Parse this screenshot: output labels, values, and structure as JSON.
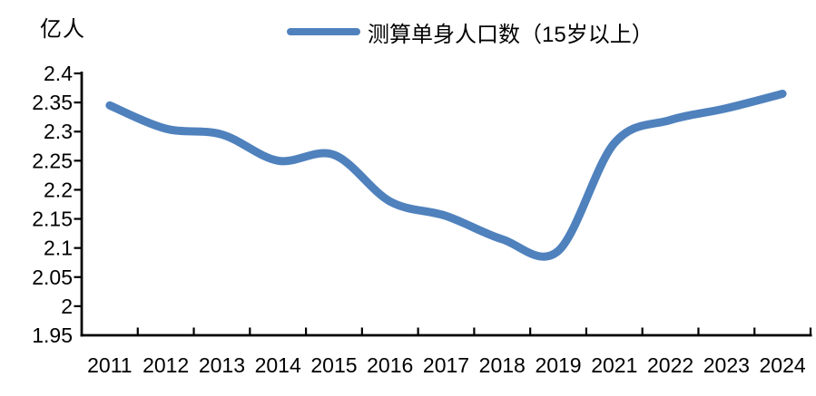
{
  "unit_label": "亿人",
  "legend": {
    "label": "测算单身人口数（15岁以上）",
    "line_color": "#4F81BD"
  },
  "chart_data": {
    "type": "line",
    "smooth": true,
    "title": "测算单身人口数（15岁以上）",
    "ylabel": "亿人",
    "xlabel": "",
    "categories": [
      "2011",
      "2012",
      "2013",
      "2014",
      "2015",
      "2016",
      "2017",
      "2018",
      "2019",
      "2021",
      "2022",
      "2023",
      "2024"
    ],
    "series": [
      {
        "name": "测算单身人口数（15岁以上）",
        "color": "#4F81BD",
        "values": [
          2.345,
          2.305,
          2.295,
          2.25,
          2.26,
          2.18,
          2.155,
          2.115,
          2.095,
          2.28,
          2.32,
          2.34,
          2.365
        ]
      }
    ],
    "ylim": [
      1.95,
      2.4
    ],
    "ytick_step": 0.05,
    "ytick_labels": [
      "2.4",
      "2.35",
      "2.3",
      "2.25",
      "2.2",
      "2.15",
      "2.1",
      "2.05",
      "2",
      "1.95"
    ],
    "grid": false,
    "legend_position": "top-center",
    "axis_color": "#000000"
  }
}
